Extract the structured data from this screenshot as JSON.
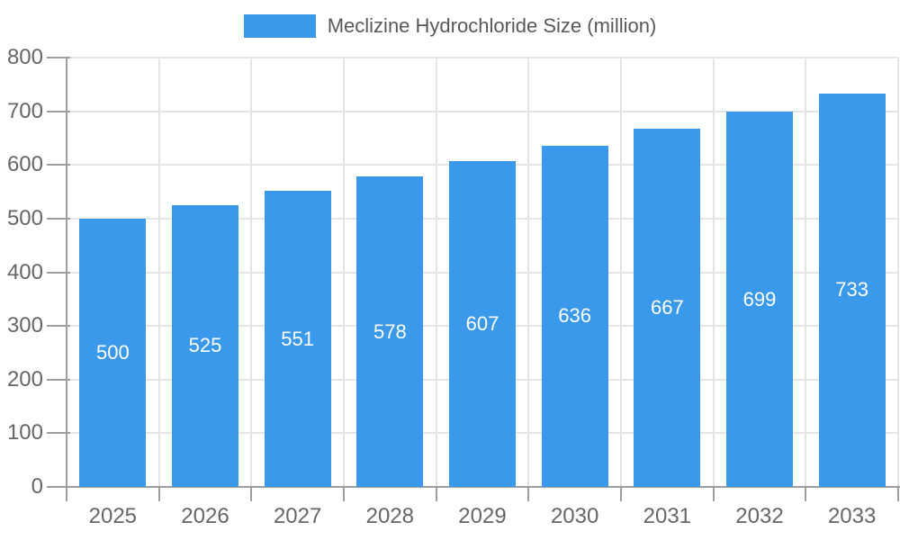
{
  "chart_data": {
    "type": "bar",
    "title": "Meclizine Hydrochloride Size (million)",
    "categories": [
      "2025",
      "2026",
      "2027",
      "2028",
      "2029",
      "2030",
      "2031",
      "2032",
      "2033"
    ],
    "series": [
      {
        "name": "Meclizine Hydrochloride Size (million)",
        "values": [
          500,
          525,
          551,
          578,
          607,
          636,
          667,
          699,
          733
        ]
      }
    ],
    "xlabel": "",
    "ylabel": "",
    "ylim": [
      0,
      800
    ],
    "yticks": [
      0,
      100,
      200,
      300,
      400,
      500,
      600,
      700,
      800
    ],
    "grid": true,
    "legend_position": "top-center",
    "bar_labels_shown": true,
    "colors": {
      "bar": "#3B99EC",
      "bar_label": "#FFFFFF",
      "axis_text": "#666666",
      "legend_text": "#595959",
      "gridline": "#E5E5E5",
      "axis_line": "#9E9E9E"
    }
  }
}
